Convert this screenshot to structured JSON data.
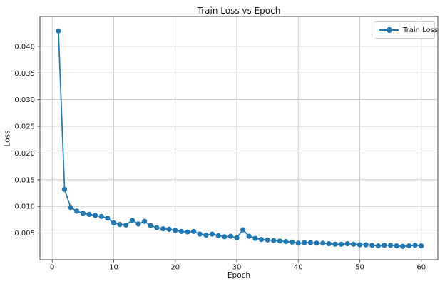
{
  "chart_data": {
    "type": "line",
    "title": "Train Loss vs Epoch",
    "xlabel": "Epoch",
    "ylabel": "Loss",
    "grid": true,
    "legend_position": "upper right",
    "colors": {
      "series": "#1f77b4",
      "grid": "#cccccc",
      "spine": "#4a4a4a",
      "text": "#1a1a1a",
      "background": "#ffffff"
    },
    "xlim": [
      -2,
      62.7
    ],
    "ylim": [
      0,
      0.0456
    ],
    "xticks": [
      0,
      10,
      20,
      30,
      40,
      50,
      60
    ],
    "xtick_labels": [
      "0",
      "10",
      "20",
      "30",
      "40",
      "50",
      "60"
    ],
    "yticks": [
      0.005,
      0.01,
      0.015,
      0.02,
      0.025,
      0.03,
      0.035,
      0.04
    ],
    "ytick_labels": [
      "0.005",
      "0.010",
      "0.015",
      "0.020",
      "0.025",
      "0.030",
      "0.035",
      "0.040"
    ],
    "x": [
      1,
      2,
      3,
      4,
      5,
      6,
      7,
      8,
      9,
      10,
      11,
      12,
      13,
      14,
      15,
      16,
      17,
      18,
      19,
      20,
      21,
      22,
      23,
      24,
      25,
      26,
      27,
      28,
      29,
      30,
      31,
      32,
      33,
      34,
      35,
      36,
      37,
      38,
      39,
      40,
      41,
      42,
      43,
      44,
      45,
      46,
      47,
      48,
      49,
      50,
      51,
      52,
      53,
      54,
      55,
      56,
      57,
      58,
      59,
      60
    ],
    "series": [
      {
        "name": "Train Loss",
        "marker": "circle",
        "values": [
          0.0429,
          0.0132,
          0.0098,
          0.0091,
          0.0087,
          0.0085,
          0.0083,
          0.0081,
          0.0078,
          0.0069,
          0.0066,
          0.0065,
          0.0074,
          0.0067,
          0.0072,
          0.0064,
          0.006,
          0.0058,
          0.0057,
          0.0055,
          0.0053,
          0.0052,
          0.0053,
          0.0048,
          0.0046,
          0.0048,
          0.0045,
          0.0043,
          0.0044,
          0.0041,
          0.0056,
          0.0044,
          0.004,
          0.0038,
          0.0037,
          0.0036,
          0.0035,
          0.0034,
          0.0033,
          0.0031,
          0.0032,
          0.0032,
          0.0031,
          0.0031,
          0.003,
          0.0029,
          0.0029,
          0.003,
          0.0029,
          0.0028,
          0.0028,
          0.0027,
          0.0026,
          0.0027,
          0.0027,
          0.0026,
          0.0025,
          0.0026,
          0.0027,
          0.0026
        ]
      }
    ]
  }
}
